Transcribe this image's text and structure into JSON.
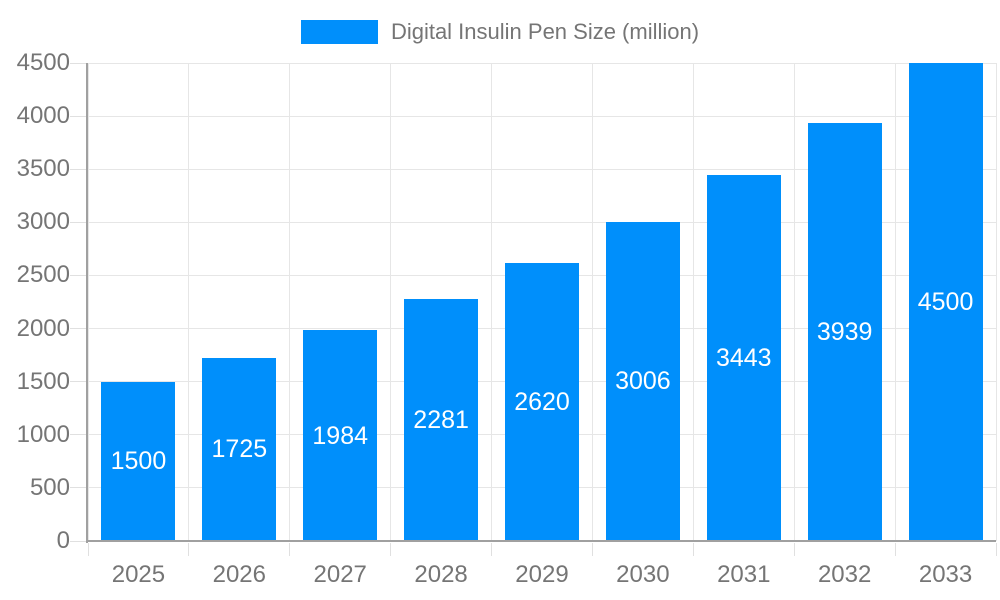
{
  "chart_data": {
    "type": "bar",
    "title": "Digital Insulin Pen Size (million)",
    "series_name": "Digital Insulin Pen Size (million)",
    "categories": [
      "2025",
      "2026",
      "2027",
      "2028",
      "2029",
      "2030",
      "2031",
      "2032",
      "2033"
    ],
    "values": [
      1500,
      1725,
      1984,
      2281,
      2620,
      3006,
      3443,
      3939,
      4500
    ],
    "bar_value_labels": [
      "1500",
      "1725",
      "1984",
      "2281",
      "2620",
      "3006",
      "3443",
      "3939",
      "4500"
    ],
    "xlabel": "",
    "ylabel": "",
    "ylim": [
      0,
      4500
    ],
    "ytick_step": 500,
    "yticks": [
      0,
      500,
      1000,
      1500,
      2000,
      2500,
      3000,
      3500,
      4000,
      4500
    ],
    "grid": true,
    "legend_position": "top",
    "colors": {
      "bar": "#008FFB",
      "bar_label_text": "#ffffff",
      "axis_text": "#757575",
      "legend_text": "#757575",
      "gridline": "#e6e6e6",
      "tick": "#e0e0e0",
      "axis_line": "#a0a0a0",
      "background": "#ffffff"
    }
  }
}
